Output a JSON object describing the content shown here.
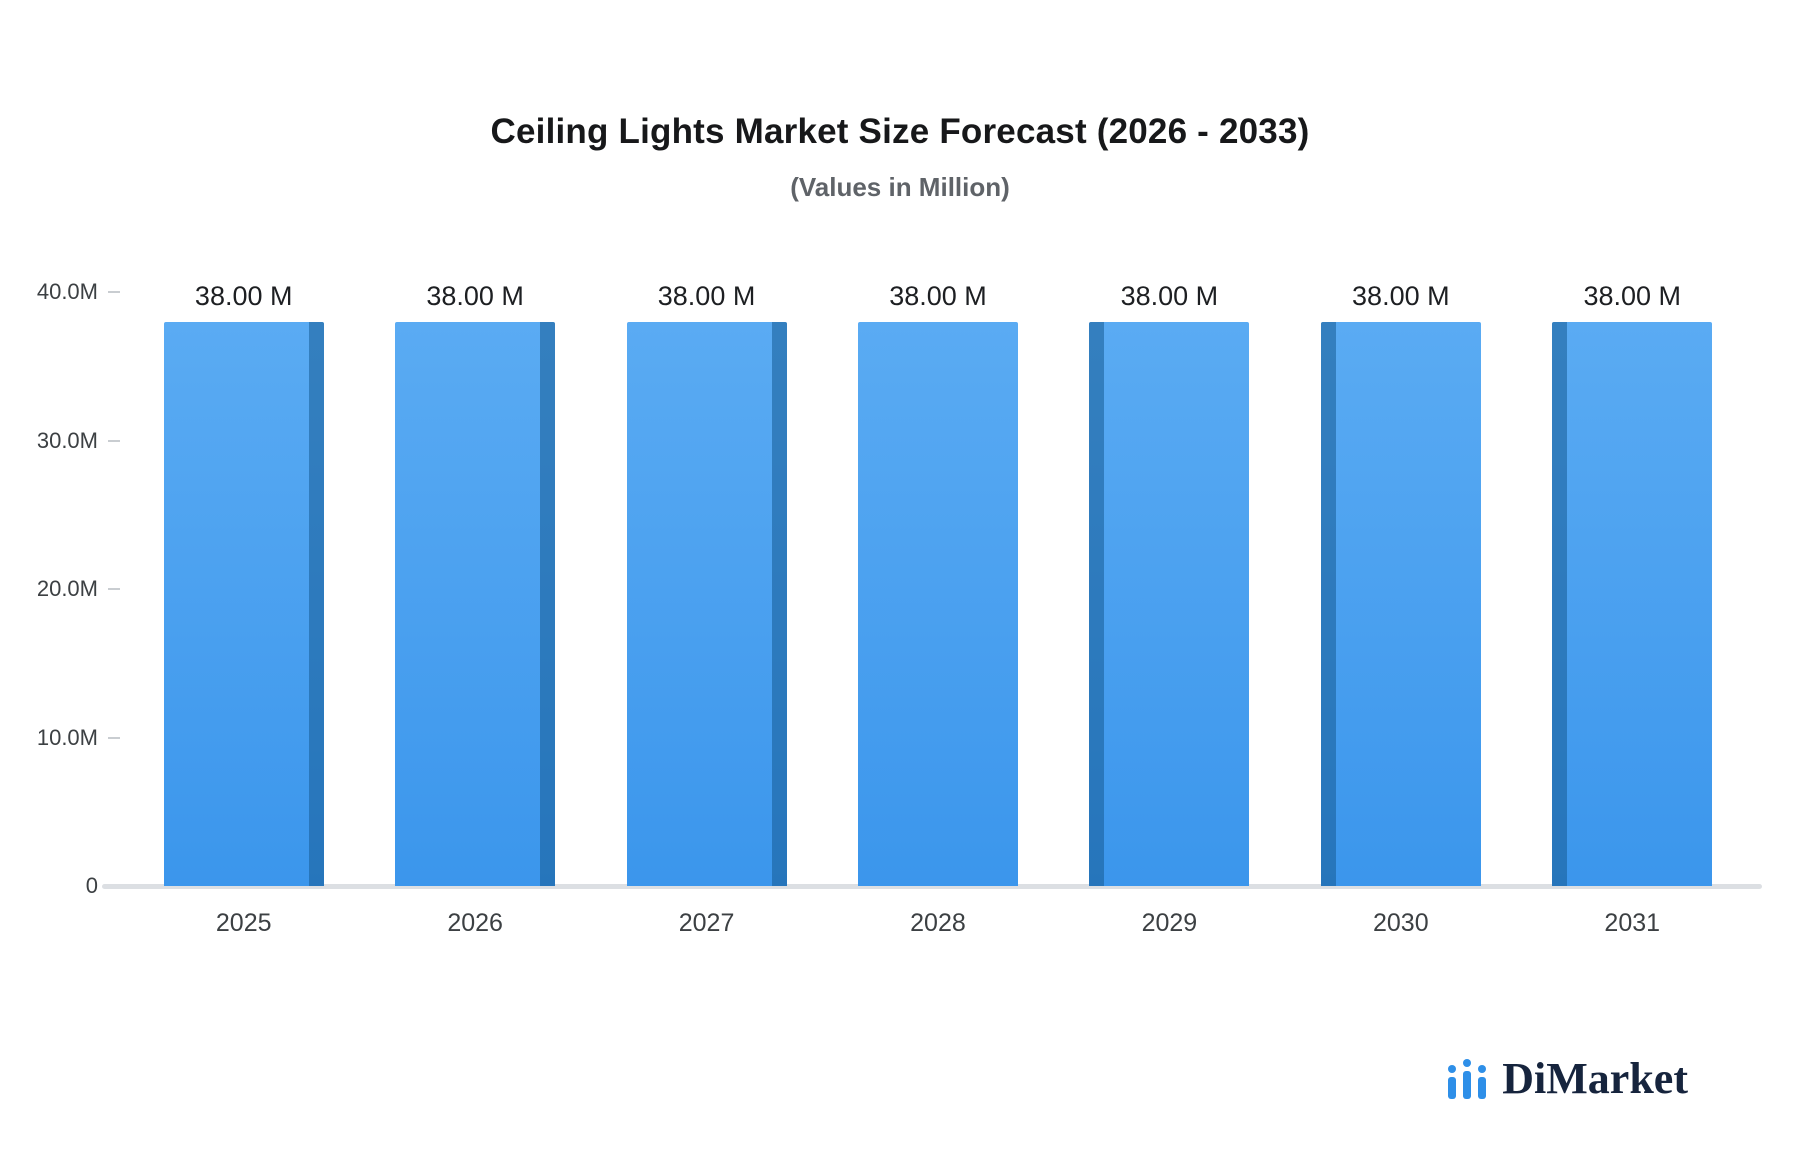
{
  "title": "Ceiling Lights Market Size Forecast (2026 - 2033)",
  "subtitle": "(Values in Million)",
  "chart_data": {
    "type": "bar",
    "categories": [
      "2025",
      "2026",
      "2027",
      "2028",
      "2029",
      "2030",
      "2031"
    ],
    "values": [
      38,
      38,
      38,
      38,
      38,
      38,
      38
    ],
    "value_labels": [
      "38.00 M",
      "38.00 M",
      "38.00 M",
      "38.00 M",
      "38.00 M",
      "38.00 M",
      "38.00 M"
    ],
    "title": "Ceiling Lights Market Size Forecast (2026 - 2033)",
    "subtitle": "(Values in Million)",
    "xlabel": "",
    "ylabel": "",
    "ylim": [
      0,
      40
    ],
    "yticks": [
      {
        "value": 0,
        "label": "0"
      },
      {
        "value": 10,
        "label": "10.0M"
      },
      {
        "value": 20,
        "label": "20.0M"
      },
      {
        "value": 30,
        "label": "30.0M"
      },
      {
        "value": 40,
        "label": "40.0M"
      }
    ],
    "grid": false,
    "legend": false,
    "bar_color_top": "#5aabf3",
    "bar_color_bottom": "#3b96ec"
  },
  "logo": {
    "text": "DiMarket",
    "icon": "bar-chart-dots-icon",
    "text_color": "#16243d",
    "accent_color": "#2e8fe8"
  }
}
